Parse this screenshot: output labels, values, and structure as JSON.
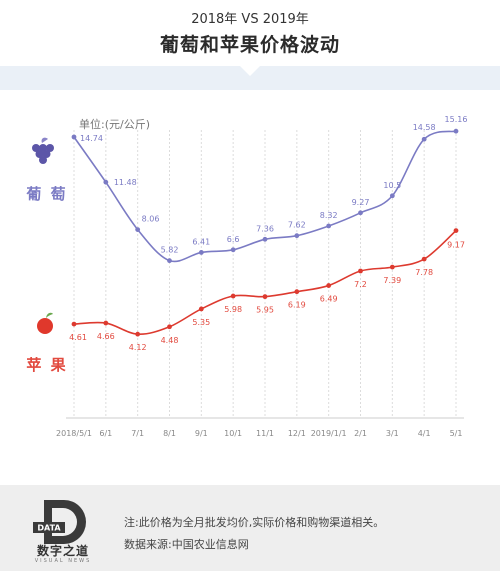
{
  "header": {
    "subtitle": "2018年 VS 2019年",
    "title": "葡萄和苹果价格波动"
  },
  "footer": {
    "logo_badge": "DATA",
    "logo_name": "数字之道",
    "logo_sub": "VISUAL NEWS",
    "note": "注:此价格为全月批发均价,实际价格和购物渠道相关。",
    "source": "数据来源:中国农业信息网"
  },
  "icons": {
    "grape": "grape-icon",
    "apple": "apple-icon"
  },
  "colors": {
    "grape": "#7b7bc4",
    "apple": "#dd3a2f",
    "apple_label": "#e24a3f",
    "grid": "#dcdcdc",
    "band": "#eaf0f7"
  },
  "chart_data": {
    "type": "line",
    "unit": "单位:(元/公斤)",
    "categories": [
      "2018/5/1",
      "6/1",
      "7/1",
      "8/1",
      "9/1",
      "10/1",
      "11/1",
      "12/1",
      "2019/1/1",
      "2/1",
      "3/1",
      "4/1",
      "5/1"
    ],
    "series": [
      {
        "name": "葡萄",
        "values": [
          14.74,
          11.48,
          8.06,
          5.82,
          6.41,
          6.6,
          7.36,
          7.62,
          8.32,
          9.27,
          10.5,
          14.58,
          15.16
        ]
      },
      {
        "name": "苹果",
        "values": [
          4.61,
          4.66,
          4.12,
          4.48,
          5.35,
          5.98,
          5.95,
          6.19,
          6.49,
          7.2,
          7.39,
          7.78,
          9.17
        ]
      }
    ],
    "grid": "vertical",
    "legend": "left"
  }
}
